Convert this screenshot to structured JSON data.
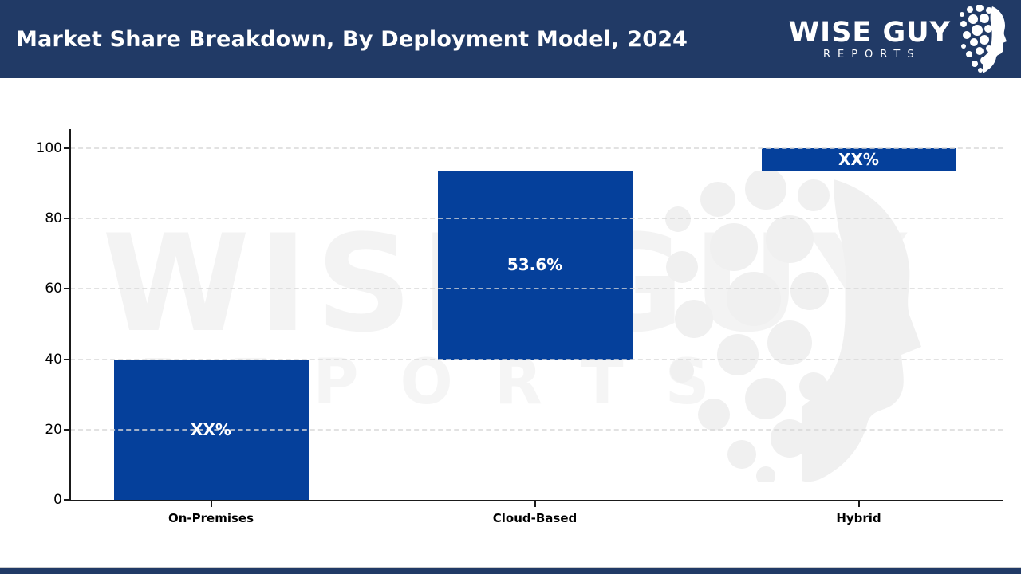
{
  "header": {
    "title": "Market Share Breakdown, By Deployment Model, 2024",
    "bg_color": "#213a66",
    "logo": {
      "line1": "WISE GUY",
      "line2": "REPORTS"
    }
  },
  "watermark": {
    "line1": "WISE GUY",
    "line2": "REPORTS"
  },
  "footer": {
    "bg_color": "#213a66"
  },
  "chart_data": {
    "type": "bar",
    "subtype": "waterfall",
    "title": "Market Share Breakdown, By Deployment Model, 2024",
    "categories": [
      "On-Premises",
      "Cloud-Based",
      "Hybrid"
    ],
    "segments": [
      {
        "category": "On-Premises",
        "label": "XX%",
        "start": 0,
        "end": 40
      },
      {
        "category": "Cloud-Based",
        "label": "53.6%",
        "start": 40,
        "end": 93.6
      },
      {
        "category": "Hybrid",
        "label": "XX%",
        "start": 93.6,
        "end": 100
      }
    ],
    "yticks": [
      0,
      20,
      40,
      60,
      80,
      100
    ],
    "ylim": [
      0,
      105
    ],
    "grid": true,
    "grid_style": "dashed",
    "gridline_color": "#d9d9d9",
    "bar_color": "#05409b",
    "value_label_color": "#ffffff",
    "xlabel": "",
    "ylabel": ""
  }
}
